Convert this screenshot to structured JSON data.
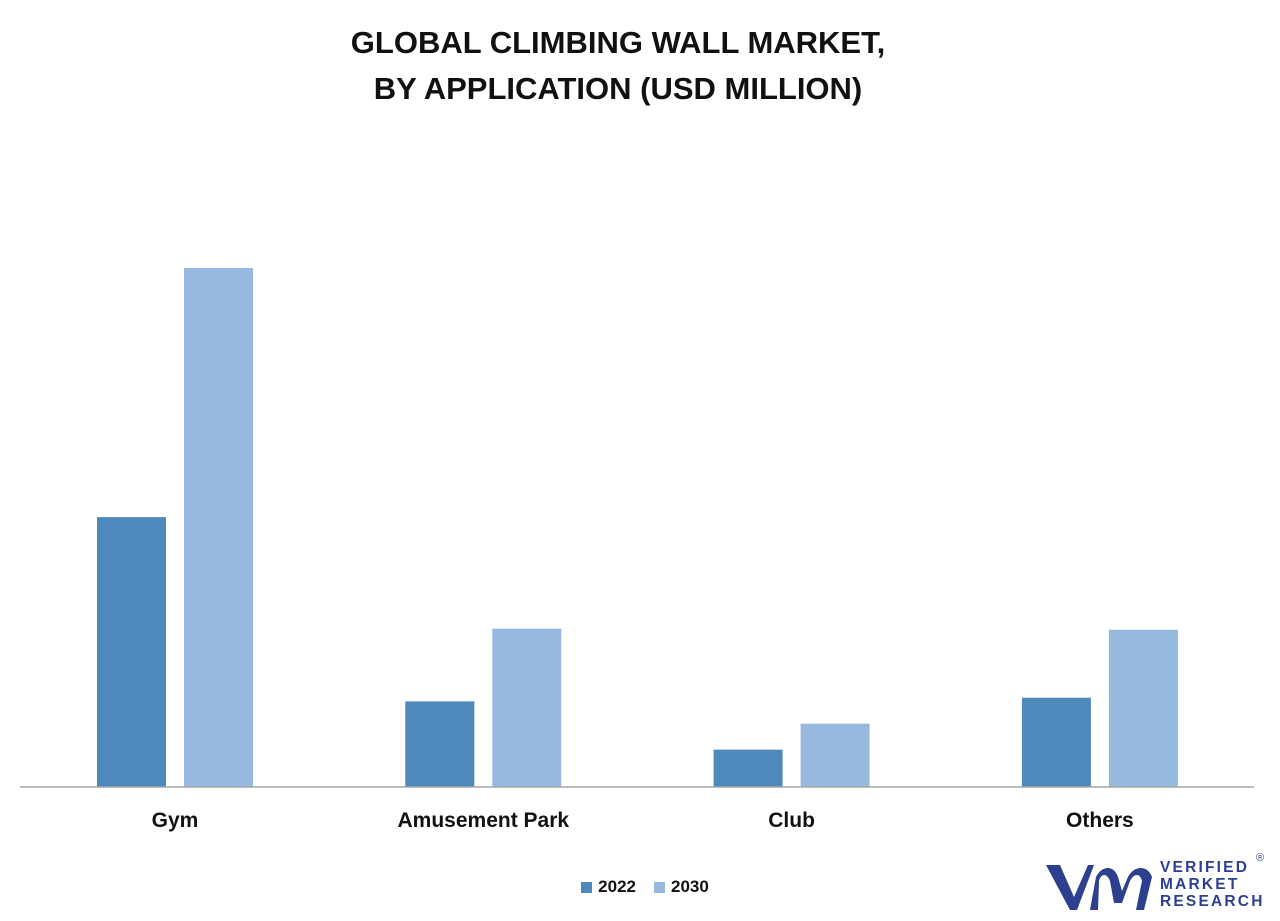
{
  "title_line1": "GLOBAL CLIMBING WALL MARKET,",
  "title_line2": "BY APPLICATION (USD MILLION)",
  "chart_data": {
    "type": "bar",
    "title": "GLOBAL CLIMBING WALL MARKET, BY APPLICATION (USD MILLION)",
    "categories": [
      "Gym",
      "Amusement Park",
      "Club",
      "Others"
    ],
    "series": [
      {
        "name": "2022",
        "color": "#4f89bc",
        "values": [
          52,
          16.5,
          7.2,
          17.2
        ]
      },
      {
        "name": "2030",
        "color": "#98b9df",
        "values": [
          100,
          30.5,
          12.2,
          30.3
        ]
      }
    ],
    "ylim": [
      0,
      100
    ],
    "grid": false,
    "legend_position": "bottom-center"
  },
  "legend": {
    "item1": "2022",
    "item2": "2030"
  },
  "logo": {
    "line1": "VERIFIED",
    "line2": "MARKET",
    "line3": "RESEARCH",
    "reg": "®",
    "color": "#2d3f8f"
  }
}
